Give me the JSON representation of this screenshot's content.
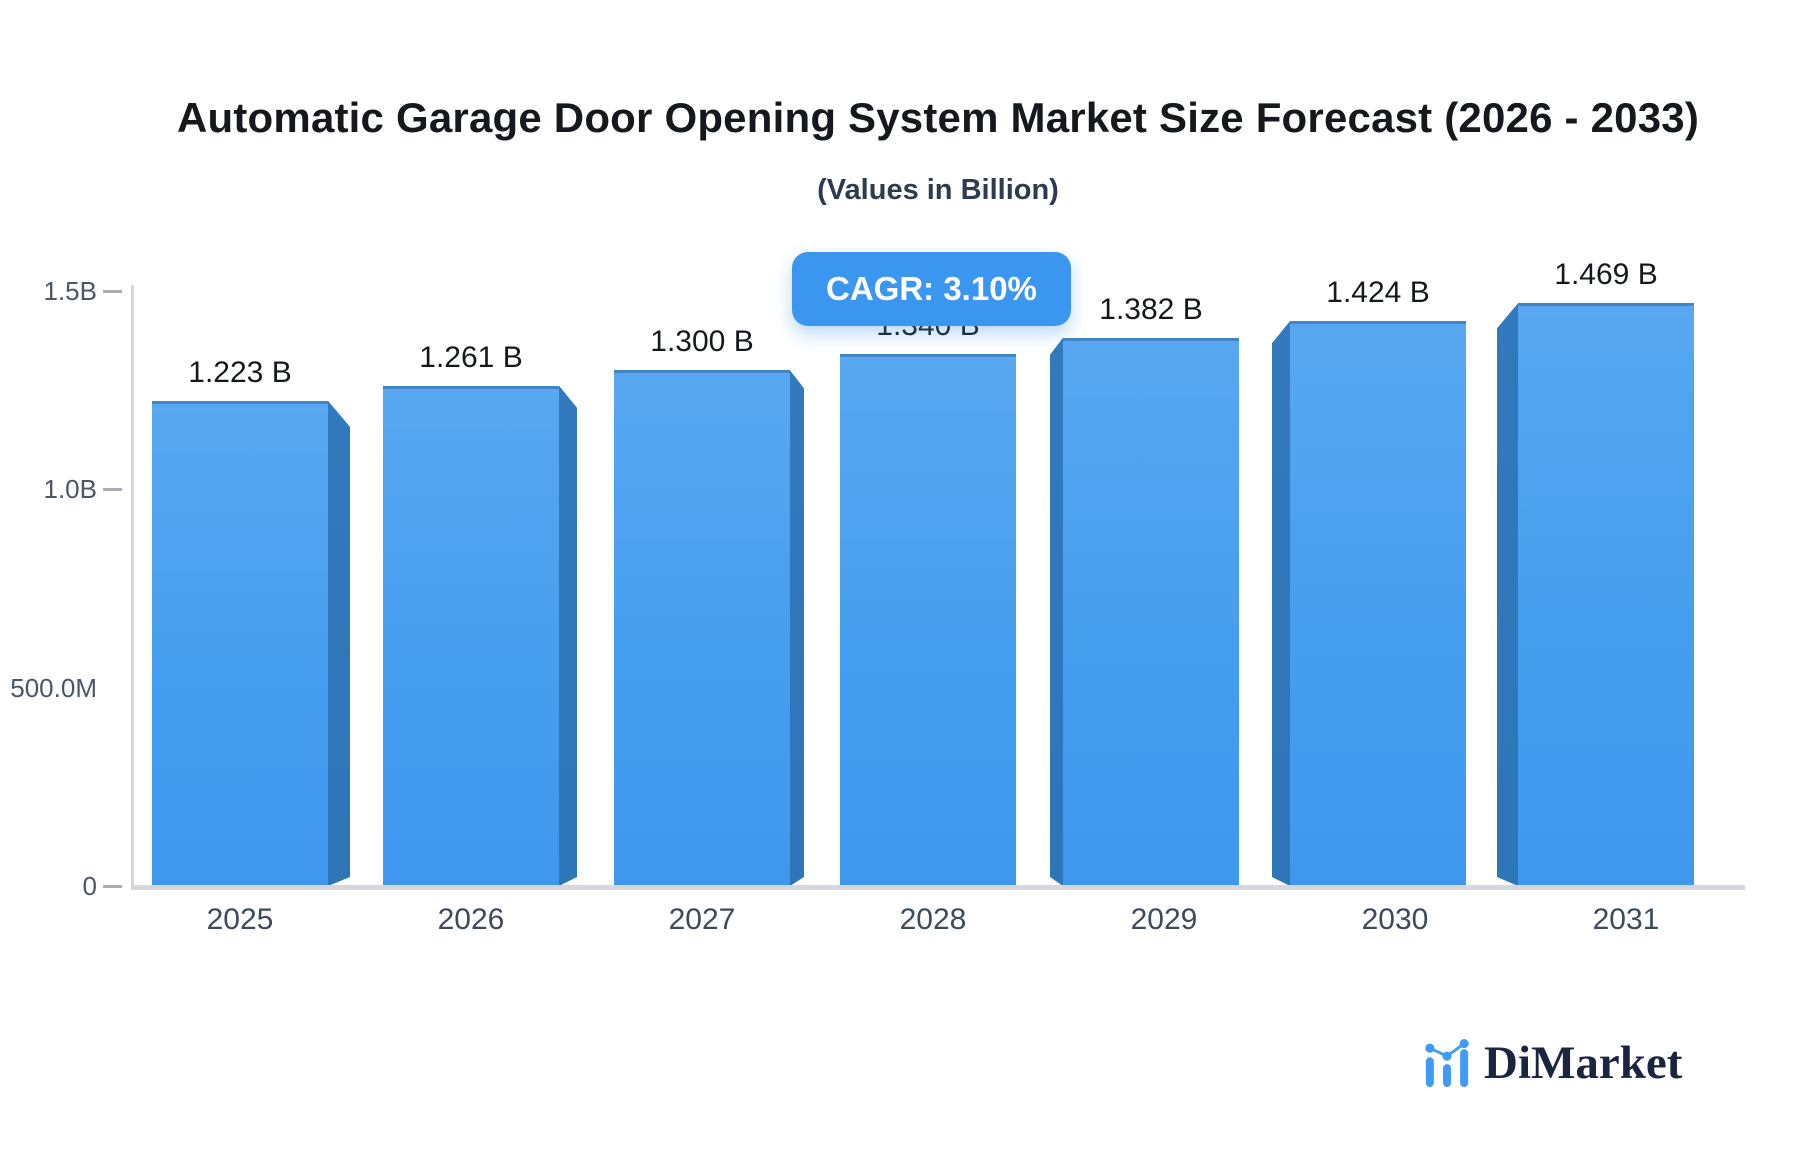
{
  "header": {
    "title": "Automatic Garage Door Opening System Market Size Forecast (2026 - 2033)",
    "subtitle": "(Values in Billion)"
  },
  "badge": {
    "label": "CAGR: 3.10%",
    "bg_color": "#3b96ef",
    "text_color": "#ffffff"
  },
  "logo": {
    "name": "DiMarket",
    "icon": "bar-chart-logo-icon",
    "icon_color": "#3f9bf4",
    "text_color": "#1b2540"
  },
  "chart_data": {
    "type": "bar",
    "title": "Automatic Garage Door Opening System Market Size Forecast (2026 - 2033)",
    "subtitle": "(Values in Billion)",
    "categories": [
      "2025",
      "2026",
      "2027",
      "2028",
      "2029",
      "2030",
      "2031"
    ],
    "values": [
      1.223,
      1.261,
      1.3,
      1.34,
      1.382,
      1.424,
      1.469
    ],
    "value_labels": [
      "1.223 B",
      "1.261 B",
      "1.300 B",
      "1.340 B",
      "1.382 B",
      "1.424 B",
      "1.469 B"
    ],
    "xlabel": "",
    "ylabel": "",
    "ylim": [
      0,
      1.5
    ],
    "yticks": [
      {
        "value": 1.5,
        "label": "1.5B",
        "dash": true
      },
      {
        "value": 1.0,
        "label": "1.0B",
        "dash": true
      },
      {
        "value": 0.5,
        "label": "500.0M",
        "dash": false
      },
      {
        "value": 0.0,
        "label": "0",
        "dash": true
      }
    ],
    "grid": false,
    "legend": "none",
    "style_3d": true,
    "annotation": "CAGR: 3.10%",
    "colors": {
      "bar_face_top": "#58a7f0",
      "bar_face_bottom": "#3f98ee",
      "bar_side": "#2d76b8",
      "bar_top_edge": "#4285c5",
      "axis_line": "#d6d6dc",
      "tick_label": "#4b5666",
      "value_label": "#15181d"
    }
  }
}
